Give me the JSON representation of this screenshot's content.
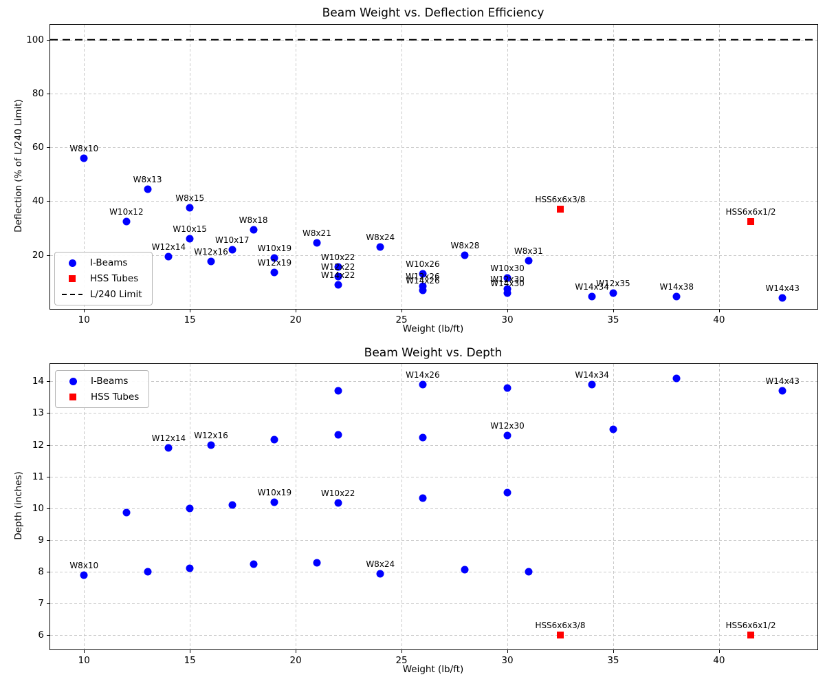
{
  "figure": {
    "background": "#ffffff"
  },
  "colors": {
    "ibeam_marker": "#0000ff",
    "hss_marker": "#ff0000",
    "limit_line": "#000000",
    "grid_line": "#c9c9c9",
    "axis_frame": "#000000"
  },
  "chart_data": [
    {
      "type": "scatter",
      "title": "Beam Weight vs. Deflection Efficiency",
      "xlabel": "Weight (lb/ft)",
      "ylabel": "Deflection (% of L/240 Limit)",
      "xlim": [
        8.4,
        44.65
      ],
      "ylim": [
        0,
        105.5
      ],
      "xticks": [
        10,
        15,
        20,
        25,
        30,
        35,
        40
      ],
      "yticks": [
        20,
        40,
        60,
        80,
        100
      ],
      "grid": true,
      "limit_line": {
        "y": 100,
        "label": "L/240 Limit",
        "color": "#000000"
      },
      "legend": {
        "position": "lower-left",
        "entries": [
          {
            "label": "I-Beams",
            "marker": "circle",
            "color": "#0000ff"
          },
          {
            "label": "HSS Tubes",
            "marker": "square",
            "color": "#ff0000"
          },
          {
            "label": "L/240 Limit",
            "marker": "dashed-line",
            "color": "#000000"
          }
        ]
      },
      "series": [
        {
          "name": "I-Beams",
          "marker": "circle",
          "color": "#0000ff",
          "points": [
            {
              "label": "W8x10",
              "x": 10,
              "y": 56,
              "annotated": true
            },
            {
              "label": "W10x12",
              "x": 12,
              "y": 32.5,
              "annotated": true
            },
            {
              "label": "W8x13",
              "x": 13,
              "y": 44.5,
              "annotated": true
            },
            {
              "label": "W12x14",
              "x": 14,
              "y": 19.5,
              "annotated": true
            },
            {
              "label": "W8x15",
              "x": 15,
              "y": 37.5,
              "annotated": true
            },
            {
              "label": "W10x15",
              "x": 15,
              "y": 26,
              "annotated": true
            },
            {
              "label": "W12x16",
              "x": 16,
              "y": 17.5,
              "annotated": true
            },
            {
              "label": "W10x17",
              "x": 17,
              "y": 22,
              "annotated": true
            },
            {
              "label": "W8x18",
              "x": 18,
              "y": 29.5,
              "annotated": true
            },
            {
              "label": "W10x19",
              "x": 19,
              "y": 19,
              "annotated": true
            },
            {
              "label": "W12x19",
              "x": 19,
              "y": 13.5,
              "annotated": true
            },
            {
              "label": "W8x21",
              "x": 21,
              "y": 24.5,
              "annotated": true
            },
            {
              "label": "W10x22",
              "x": 22,
              "y": 15.5,
              "annotated": true
            },
            {
              "label": "W12x22",
              "x": 22,
              "y": 12,
              "annotated": true
            },
            {
              "label": "W14x22",
              "x": 22,
              "y": 9,
              "annotated": true
            },
            {
              "label": "W8x24",
              "x": 24,
              "y": 23,
              "annotated": true
            },
            {
              "label": "W10x26",
              "x": 26,
              "y": 13,
              "annotated": true
            },
            {
              "label": "W12x26",
              "x": 26,
              "y": 8.5,
              "annotated": true
            },
            {
              "label": "W14x26",
              "x": 26,
              "y": 7,
              "annotated": true
            },
            {
              "label": "W8x28",
              "x": 28,
              "y": 20,
              "annotated": true
            },
            {
              "label": "W10x30",
              "x": 30,
              "y": 11.5,
              "annotated": true
            },
            {
              "label": "W12x30",
              "x": 30,
              "y": 7.5,
              "annotated": true
            },
            {
              "label": "W14x30",
              "x": 30,
              "y": 6,
              "annotated": true
            },
            {
              "label": "W8x31",
              "x": 31,
              "y": 18,
              "annotated": true
            },
            {
              "label": "W14x34",
              "x": 34,
              "y": 4.5,
              "annotated": true
            },
            {
              "label": "W12x35",
              "x": 35,
              "y": 6,
              "annotated": true
            },
            {
              "label": "W14x38",
              "x": 38,
              "y": 4.5,
              "annotated": true
            },
            {
              "label": "W14x43",
              "x": 43,
              "y": 4,
              "annotated": true
            }
          ]
        },
        {
          "name": "HSS Tubes",
          "marker": "square",
          "color": "#ff0000",
          "points": [
            {
              "label": "HSS6x6x3/8",
              "x": 32.5,
              "y": 37,
              "annotated": true
            },
            {
              "label": "HSS6x6x1/2",
              "x": 41.5,
              "y": 32.5,
              "annotated": true
            }
          ]
        }
      ]
    },
    {
      "type": "scatter",
      "title": "Beam Weight vs. Depth",
      "xlabel": "Weight (lb/ft)",
      "ylabel": "Depth (inches)",
      "xlim": [
        8.4,
        44.65
      ],
      "ylim": [
        5.55,
        14.55
      ],
      "xticks": [
        10,
        15,
        20,
        25,
        30,
        35,
        40
      ],
      "yticks": [
        6,
        7,
        8,
        9,
        10,
        11,
        12,
        13,
        14
      ],
      "grid": true,
      "legend": {
        "position": "upper-left",
        "entries": [
          {
            "label": "I-Beams",
            "marker": "circle",
            "color": "#0000ff"
          },
          {
            "label": "HSS Tubes",
            "marker": "square",
            "color": "#ff0000"
          }
        ]
      },
      "series": [
        {
          "name": "I-Beams",
          "marker": "circle",
          "color": "#0000ff",
          "points": [
            {
              "label": "W8x10",
              "x": 10,
              "y": 7.89,
              "annotated": true
            },
            {
              "label": "W10x12",
              "x": 12,
              "y": 9.87,
              "annotated": false
            },
            {
              "label": "W8x13",
              "x": 13,
              "y": 7.99,
              "annotated": false
            },
            {
              "label": "W12x14",
              "x": 14,
              "y": 11.91,
              "annotated": true
            },
            {
              "label": "W8x15",
              "x": 15,
              "y": 8.11,
              "annotated": false
            },
            {
              "label": "W10x15",
              "x": 15,
              "y": 9.99,
              "annotated": false
            },
            {
              "label": "W12x16",
              "x": 16,
              "y": 11.99,
              "annotated": true
            },
            {
              "label": "W10x17",
              "x": 17,
              "y": 10.11,
              "annotated": false
            },
            {
              "label": "W8x18",
              "x": 18,
              "y": 8.25,
              "annotated": false
            },
            {
              "label": "W10x19",
              "x": 19,
              "y": 10.2,
              "annotated": true
            },
            {
              "label": "W12x19",
              "x": 19,
              "y": 12.16,
              "annotated": false
            },
            {
              "label": "W8x21",
              "x": 21,
              "y": 8.28,
              "annotated": false
            },
            {
              "label": "W10x22",
              "x": 22,
              "y": 10.17,
              "annotated": true
            },
            {
              "label": "W12x22",
              "x": 22,
              "y": 12.31,
              "annotated": false
            },
            {
              "label": "W14x22",
              "x": 22,
              "y": 13.7,
              "annotated": false
            },
            {
              "label": "W8x24",
              "x": 24,
              "y": 7.93,
              "annotated": true
            },
            {
              "label": "W10x26",
              "x": 26,
              "y": 10.33,
              "annotated": false
            },
            {
              "label": "W12x26",
              "x": 26,
              "y": 12.22,
              "annotated": false
            },
            {
              "label": "W14x26",
              "x": 26,
              "y": 13.9,
              "annotated": true
            },
            {
              "label": "W8x28",
              "x": 28,
              "y": 8.06,
              "annotated": false
            },
            {
              "label": "W10x30",
              "x": 30,
              "y": 10.5,
              "annotated": false
            },
            {
              "label": "W12x30",
              "x": 30,
              "y": 12.3,
              "annotated": true
            },
            {
              "label": "W14x30",
              "x": 30,
              "y": 13.8,
              "annotated": false
            },
            {
              "label": "W8x31",
              "x": 31,
              "y": 8.0,
              "annotated": false
            },
            {
              "label": "W14x34",
              "x": 34,
              "y": 13.9,
              "annotated": true
            },
            {
              "label": "W12x35",
              "x": 35,
              "y": 12.5,
              "annotated": false
            },
            {
              "label": "W14x38",
              "x": 38,
              "y": 14.1,
              "annotated": false
            },
            {
              "label": "W14x43",
              "x": 43,
              "y": 13.7,
              "annotated": true
            }
          ]
        },
        {
          "name": "HSS Tubes",
          "marker": "square",
          "color": "#ff0000",
          "points": [
            {
              "label": "HSS6x6x3/8",
              "x": 32.5,
              "y": 6,
              "annotated": true
            },
            {
              "label": "HSS6x6x1/2",
              "x": 41.5,
              "y": 6,
              "annotated": true
            }
          ]
        }
      ]
    }
  ]
}
